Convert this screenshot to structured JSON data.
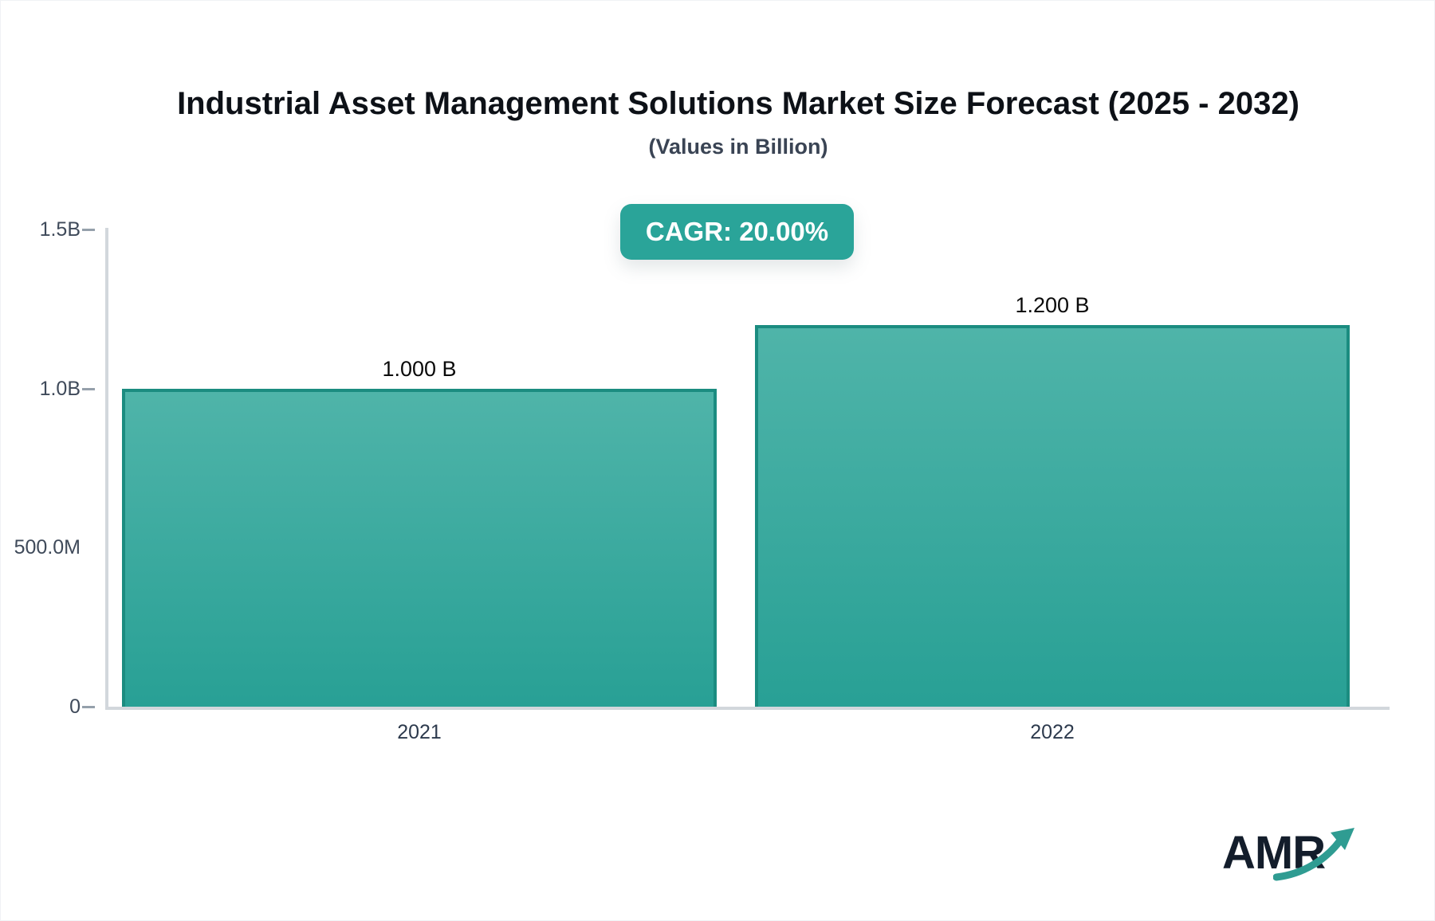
{
  "header": {
    "title": "Industrial Asset Management Solutions Market Size Forecast (2025 - 2032)",
    "subtitle": "(Values in Billion)",
    "cagr_label": "CAGR: 20.00%"
  },
  "logo": {
    "text": "AMR",
    "arrow_icon": "trend-up-arrow-icon"
  },
  "colors": {
    "accent_teal": "#2aa499",
    "bar_gradient_top": "#4fb4a9",
    "bar_gradient_bottom": "#28a095",
    "bar_border": "#1b8c80",
    "axis_line": "#d2d7dc",
    "tick_dash": "#95a0ab",
    "axis_label": "#3f4a5a",
    "category_label": "#2d3a4d",
    "title_text": "#0d1117",
    "subtitle_text": "#3a4454",
    "logo_text": "#131d2b",
    "logo_arrow": "#2f9c92"
  },
  "chart_data": {
    "type": "bar",
    "title": "Industrial Asset Management Solutions Market Size Forecast (2025 - 2032)",
    "subtitle": "(Values in Billion)",
    "cagr": "20.00%",
    "categories": [
      "2021",
      "2022"
    ],
    "values": [
      1.0,
      1.2
    ],
    "value_labels": [
      "1.000 B",
      "1.200 B"
    ],
    "unit": "Billion (B)",
    "ylabel": "",
    "xlabel": "",
    "ylim": [
      0,
      1.5
    ],
    "grid": false,
    "legend": false,
    "y_ticks": [
      {
        "label": "1.5B",
        "value": 1.5,
        "dash": true
      },
      {
        "label": "1.0B",
        "value": 1.0,
        "dash": true
      },
      {
        "label": "500.0M",
        "value": 0.5,
        "dash": false
      },
      {
        "label": "0",
        "value": 0.0,
        "dash": true
      }
    ]
  }
}
